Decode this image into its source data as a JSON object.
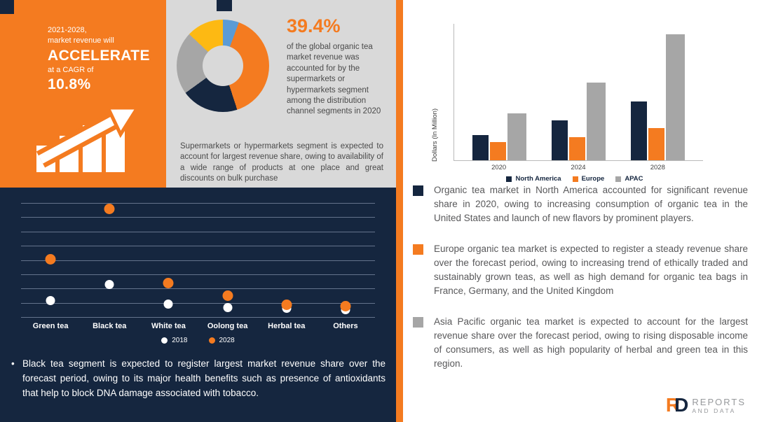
{
  "colors": {
    "orange": "#f47b20",
    "navy": "#15263f",
    "panel_gray": "#d9d9d9",
    "bar_gray": "#a6a6a6",
    "yellow": "#fdb913",
    "blue": "#5b9bd5",
    "white": "#ffffff",
    "body_text": "#58585a"
  },
  "top_left": {
    "line1": "2021-2028,",
    "line2": "market revenue will",
    "line3": "ACCELERATE",
    "line4": "at a CAGR of",
    "line5": "10.8%"
  },
  "top_middle": {
    "stat_value": "39.4%",
    "stat_text": "of the global organic tea market revenue was accounted for by the supermarkets or hypermarkets segment among the distribution channel segments in 2020",
    "note": "Supermarkets or hypermarkets segment is expected to account for largest revenue share, owing to availability of a wide range of products at one place and great discounts on bulk purchase"
  },
  "bottom_left": {
    "bullet_marker": "•",
    "bullet": "Black tea segment is expected to register largest market revenue share over the forecast period, owing to its major health benefits such as presence of antioxidants that help to block DNA damage associated with tobacco."
  },
  "right": {
    "bullets": [
      {
        "color": "#15263f",
        "text": "Organic tea market in North America accounted for significant revenue share in 2020, owing to increasing consumption of organic tea in the United States and launch of new flavors by prominent players."
      },
      {
        "color": "#f47b20",
        "text": "Europe organic tea market is expected to register a steady revenue share over the forecast period, owing to increasing trend of ethically traded and sustainably grown teas, as well as high demand for organic tea bags in France, Germany, and the United Kingdom"
      },
      {
        "color": "#a6a6a6",
        "text": "Asia Pacific organic tea market is expected to account for the largest revenue share over the forecast period, owing to rising disposable income of consumers, as well as high popularity of herbal and green tea in this region."
      }
    ]
  },
  "brand": {
    "mark_r": "R",
    "mark_d": "D",
    "logo_line1": "REPORTS",
    "logo_line2": "AND DATA"
  },
  "chart_data": [
    {
      "id": "distribution-donut",
      "type": "pie",
      "donut": true,
      "order": "clockwise from 12 o'clock",
      "slices": [
        {
          "label": "",
          "value": 5.6,
          "color": "#5b9bd5"
        },
        {
          "label": "Supermarkets or hypermarkets",
          "value": 39.4,
          "color": "#f47b20"
        },
        {
          "label": "",
          "value": 20.0,
          "color": "#15263f"
        },
        {
          "label": "",
          "value": 22.0,
          "color": "#a6a6a6"
        },
        {
          "label": "",
          "value": 13.0,
          "color": "#fdb913"
        }
      ]
    },
    {
      "id": "regional-bars",
      "type": "bar",
      "categories": [
        "2020",
        "2024",
        "2028"
      ],
      "series": [
        {
          "name": "North America",
          "color": "#15263f",
          "values": [
            175,
            280,
            410
          ]
        },
        {
          "name": "Europe",
          "color": "#f47b20",
          "values": [
            125,
            160,
            225
          ]
        },
        {
          "name": "APAC",
          "color": "#a6a6a6",
          "values": [
            325,
            540,
            875
          ]
        }
      ],
      "ylabel": "Dollars (In Million)",
      "ylim": [
        0,
        950
      ],
      "grid": false,
      "legend_position": "bottom",
      "note": "y-axis has no tick labels; values estimated from bar heights"
    },
    {
      "id": "tea-type-dots",
      "type": "scatter",
      "categories": [
        "Green tea",
        "Black tea",
        "White tea",
        "Oolong tea",
        "Herbal tea",
        "Others"
      ],
      "series": [
        {
          "name": "2018",
          "color": "#ffffff",
          "values": [
            15,
            29,
            12,
            9,
            8,
            7
          ]
        },
        {
          "name": "2028",
          "color": "#f47b20",
          "values": [
            51,
            95,
            30,
            19,
            11,
            10
          ]
        }
      ],
      "ylim": [
        0,
        100
      ],
      "grid": true,
      "gridline_count": 9,
      "legend_position": "bottom",
      "note": "no y-axis labels; values estimated relative to gridlines (0-100)"
    }
  ]
}
